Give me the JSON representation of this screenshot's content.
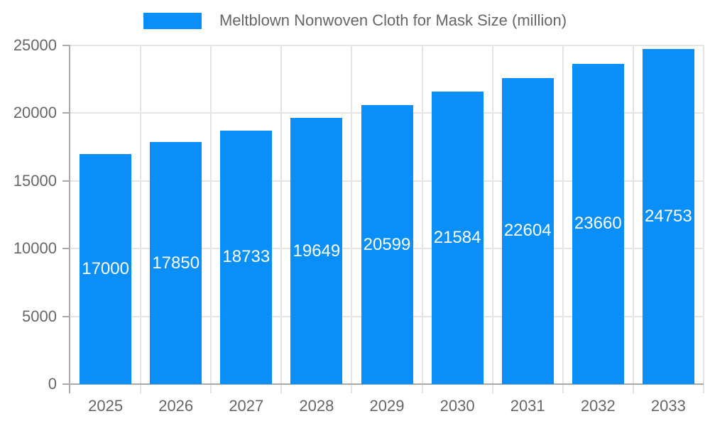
{
  "legend": {
    "label": "Meltblown Nonwoven Cloth for Mask Size (million)"
  },
  "chart_data": {
    "type": "bar",
    "title": "Meltblown Nonwoven Cloth for Mask Size (million)",
    "categories": [
      "2025",
      "2026",
      "2027",
      "2028",
      "2029",
      "2030",
      "2031",
      "2032",
      "2033"
    ],
    "values": [
      17000,
      17850,
      18733,
      19649,
      20599,
      21584,
      22604,
      23660,
      24753
    ],
    "xlabel": "",
    "ylabel": "",
    "ylim": [
      0,
      25000
    ],
    "yticks": [
      0,
      5000,
      10000,
      15000,
      20000,
      25000
    ],
    "grid": true,
    "legend_position": "top",
    "bar_color": "#0a8ff9",
    "bar_label_color": "#ffffff",
    "axis_color": "#aaaaaa",
    "grid_color": "#e4e4e4",
    "text_color": "#666666",
    "background": "#ffffff"
  }
}
